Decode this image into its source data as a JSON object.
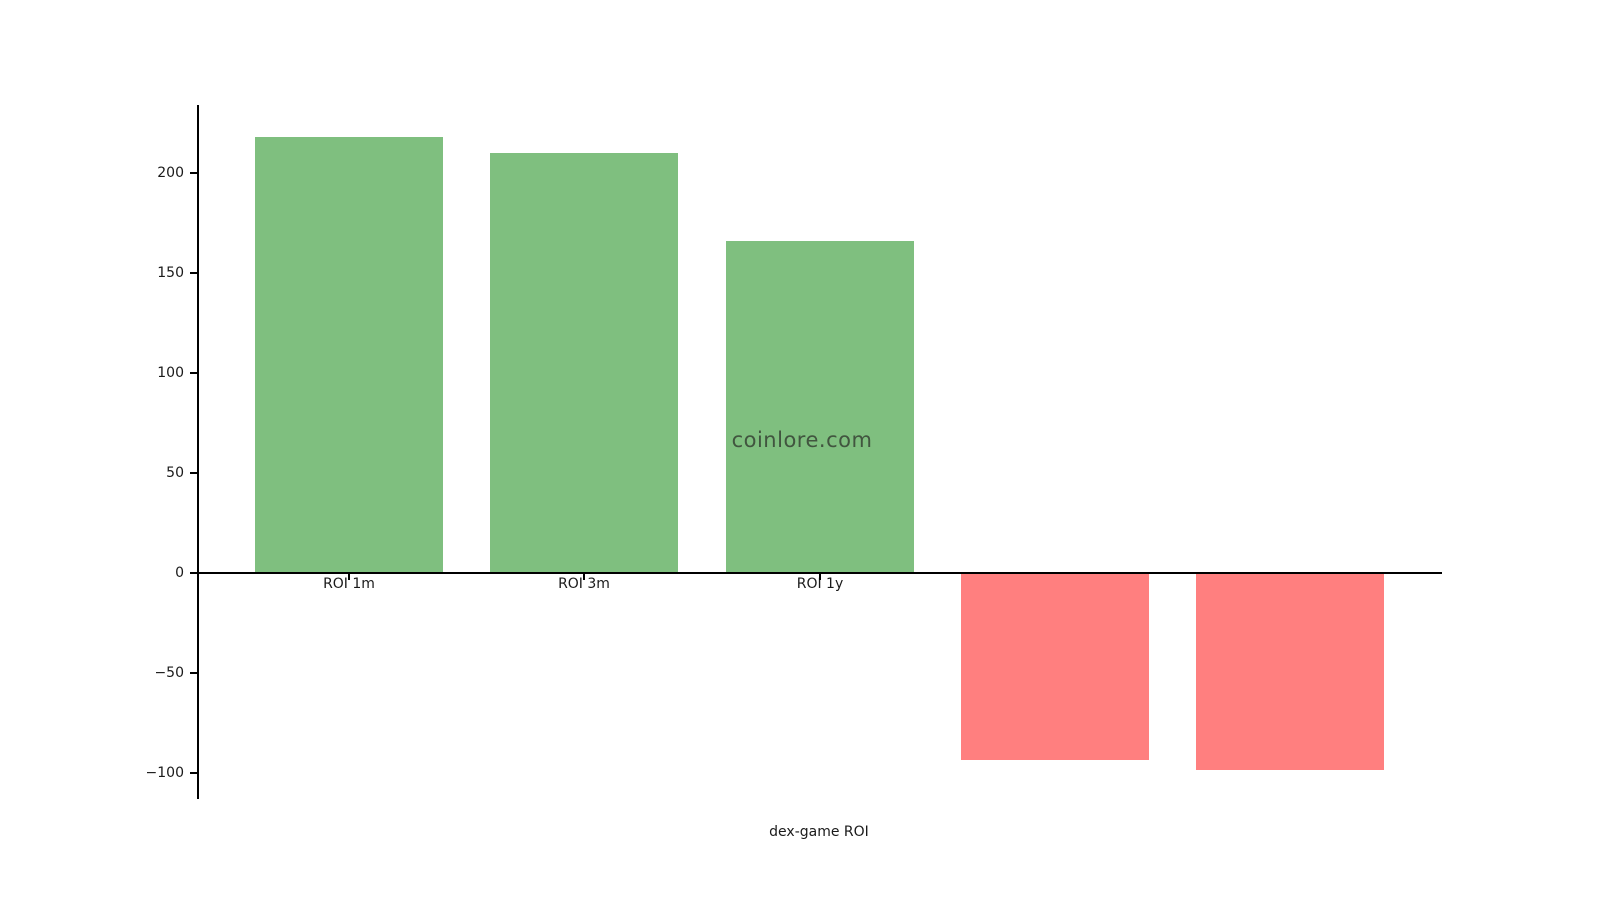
{
  "page": {
    "background": "#ffffff"
  },
  "watermark": {
    "text": "coinlore.com",
    "color": "#41553f"
  },
  "chart_data": {
    "type": "bar",
    "title": "",
    "xlabel": "dex-game ROI",
    "ylabel": "",
    "categories": [
      "ROI 1m",
      "ROI 3m",
      "ROI 1y",
      "",
      ""
    ],
    "values": [
      218,
      210,
      166,
      -93,
      -98
    ],
    "bar_colors": [
      "#7fbf7f",
      "#7fbf7f",
      "#7fbf7f",
      "#ff7f7f",
      "#ff7f7f"
    ],
    "positive_color": "#7fbf7f",
    "negative_color": "#ff7f7f",
    "axis_color": "#000000",
    "ylim": [
      -114,
      234
    ],
    "yticks": [
      {
        "value": 200,
        "label": "200"
      },
      {
        "value": 150,
        "label": "150"
      },
      {
        "value": 100,
        "label": "100"
      },
      {
        "value": 50,
        "label": "50"
      },
      {
        "value": 0,
        "label": "0"
      },
      {
        "value": -50,
        "label": "−50"
      },
      {
        "value": -100,
        "label": "−100"
      }
    ],
    "grid": false,
    "legend": "none"
  }
}
